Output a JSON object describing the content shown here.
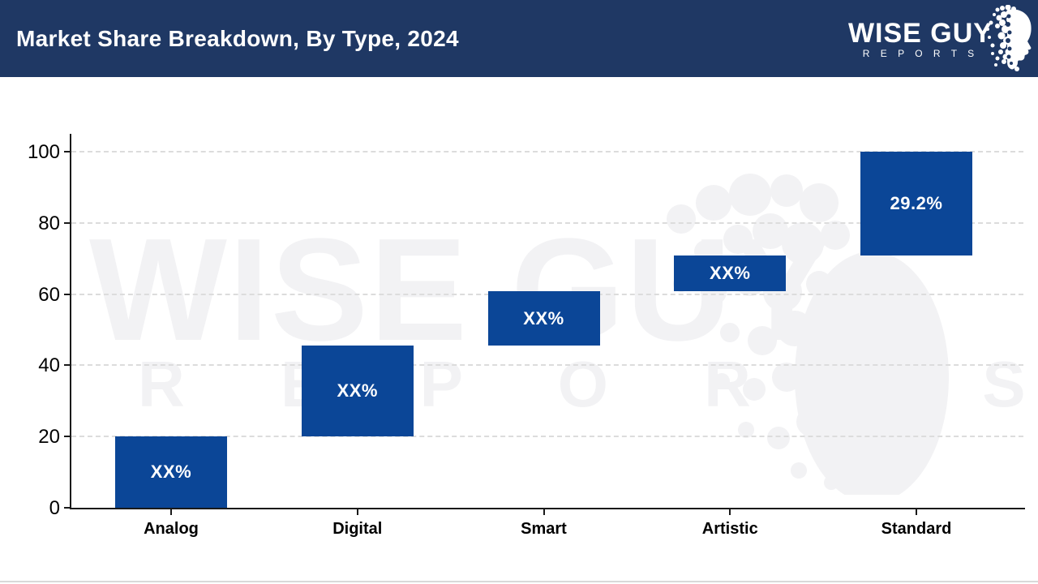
{
  "header": {
    "title": "Market Share Breakdown, By Type, 2024",
    "bg_color": "#1f3864",
    "logo": {
      "line1": "WISE GUY",
      "line2": "R E P O R T S"
    }
  },
  "watermark": {
    "line1": "WISE GUY",
    "line2": "R E P O R T S"
  },
  "chart_data": {
    "type": "bar",
    "variant": "floating-waterfall",
    "title": "Market Share Breakdown, By Type, 2024",
    "categories": [
      "Analog",
      "Digital",
      "Smart",
      "Artistic",
      "Standard"
    ],
    "segments": [
      {
        "category": "Analog",
        "start": 0,
        "end": 20,
        "label": "XX%"
      },
      {
        "category": "Digital",
        "start": 20,
        "end": 45.5,
        "label": "XX%"
      },
      {
        "category": "Smart",
        "start": 45.5,
        "end": 60.8,
        "label": "XX%"
      },
      {
        "category": "Artistic",
        "start": 60.8,
        "end": 70.8,
        "label": "XX%"
      },
      {
        "category": "Standard",
        "start": 70.8,
        "end": 100,
        "label": "29.2%"
      }
    ],
    "y_ticks": [
      0,
      20,
      40,
      60,
      80,
      100
    ],
    "ylim": [
      0,
      105
    ],
    "xlabel": "",
    "ylabel": "",
    "grid": "horizontal-dashed",
    "legend": "none",
    "bar_color": "#0b4697",
    "bar_label_color": "#ffffff",
    "axis_color": "#1a1a1a",
    "grid_color": "#dcdcdc"
  }
}
